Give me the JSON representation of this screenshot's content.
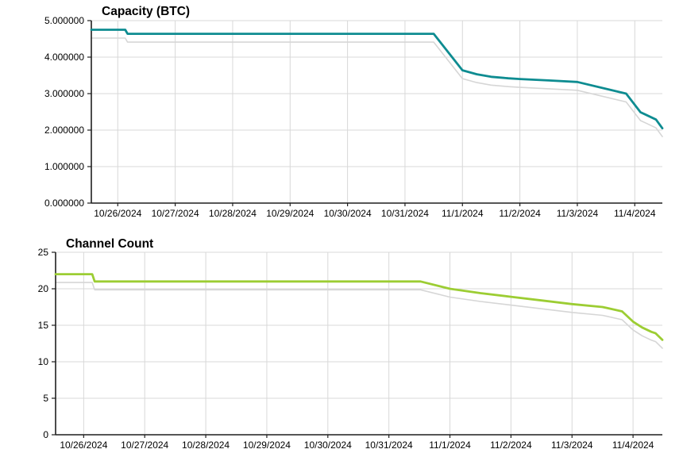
{
  "page": {
    "background": "#ffffff"
  },
  "chart_data": [
    {
      "type": "line",
      "title": "Capacity (BTC)",
      "xlabel": "",
      "ylabel": "",
      "xlim": [
        -0.46,
        9.48
      ],
      "ylim": [
        0,
        5
      ],
      "grid": true,
      "legend": "none",
      "x_axis": {
        "unit": "date",
        "tick_positions": [
          0,
          1,
          2,
          3,
          4,
          5,
          6,
          7,
          8,
          9
        ],
        "tick_labels": [
          "10/26/2024",
          "10/27/2024",
          "10/28/2024",
          "10/29/2024",
          "10/30/2024",
          "10/31/2024",
          "11/1/2024",
          "11/2/2024",
          "11/3/2024",
          "11/4/2024"
        ]
      },
      "y_axis": {
        "tick_values": [
          0,
          1,
          2,
          3,
          4,
          5
        ],
        "tick_labels": [
          "0.000000",
          "1.000000",
          "2.000000",
          "3.000000",
          "4.000000",
          "5.000000"
        ]
      },
      "series": [
        {
          "name": "Capacity (BTC)",
          "color": "#0e8c91",
          "points_x_days_from_10_26": [
            -0.46,
            0.13,
            0.17,
            5.5,
            6.0,
            6.25,
            6.5,
            6.8,
            7.0,
            7.5,
            8.0,
            8.85,
            9.1,
            9.18,
            9.37,
            9.48
          ],
          "points_y_btc": [
            4.75,
            4.75,
            4.64,
            4.64,
            3.64,
            3.53,
            3.46,
            3.42,
            3.4,
            3.36,
            3.32,
            3.0,
            2.49,
            2.43,
            2.29,
            2.05
          ]
        }
      ]
    },
    {
      "type": "line",
      "title": "Channel Count",
      "xlabel": "",
      "ylabel": "",
      "xlim": [
        -0.46,
        9.48
      ],
      "ylim": [
        0,
        25
      ],
      "grid": true,
      "legend": "none",
      "x_axis": {
        "unit": "date",
        "tick_positions": [
          0,
          1,
          2,
          3,
          4,
          5,
          6,
          7,
          8,
          9
        ],
        "tick_labels": [
          "10/26/2024",
          "10/27/2024",
          "10/28/2024",
          "10/29/2024",
          "10/30/2024",
          "10/31/2024",
          "11/1/2024",
          "11/2/2024",
          "11/3/2024",
          "11/4/2024"
        ]
      },
      "y_axis": {
        "tick_values": [
          0,
          5,
          10,
          15,
          20,
          25
        ],
        "tick_labels": [
          "0",
          "5",
          "10",
          "15",
          "20",
          "25"
        ]
      },
      "series": [
        {
          "name": "Channel Count",
          "color": "#9ccd33",
          "points_x_days_from_10_26": [
            -0.46,
            0.14,
            0.18,
            5.52,
            6.0,
            6.5,
            7.0,
            7.5,
            8.0,
            8.5,
            8.82,
            9.0,
            9.15,
            9.3,
            9.37,
            9.48
          ],
          "points_y_count": [
            22,
            22,
            21,
            21,
            20,
            19.4,
            18.9,
            18.4,
            17.9,
            17.5,
            16.9,
            15.5,
            14.7,
            14.1,
            13.9,
            13.0
          ]
        }
      ]
    }
  ],
  "style_colors": {
    "grid": "#d8d8d8",
    "axis": "#1f1f1f",
    "shadow": "#d6d6d6",
    "text": "#000000"
  }
}
